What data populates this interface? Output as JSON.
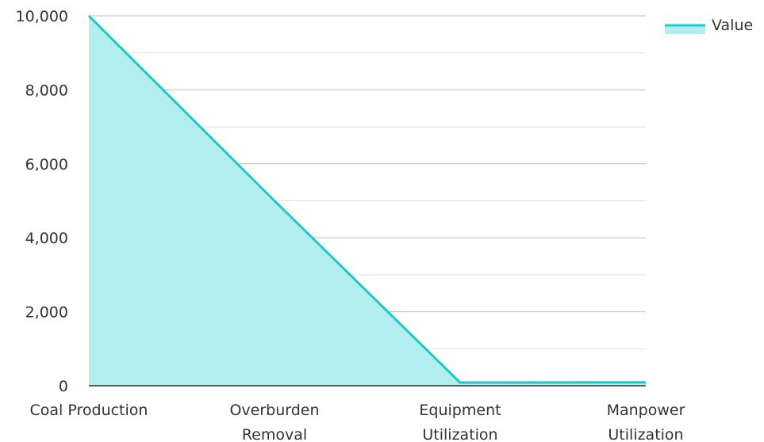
{
  "chart_data": {
    "type": "area",
    "categories": [
      "Coal Production",
      "Overburden Removal",
      "Equipment Utilization",
      "Manpower Utilization"
    ],
    "series": [
      {
        "name": "Value",
        "values": [
          10000,
          5000,
          85,
          92
        ]
      }
    ],
    "ylim": [
      0,
      10000
    ],
    "y_ticks": [
      "0",
      "2,000",
      "4,000",
      "6,000",
      "8,000",
      "10,000"
    ],
    "grid": true,
    "legend": "top-right",
    "colors": {
      "line": "#1fc8c8",
      "fill": "#b2eeee"
    }
  }
}
